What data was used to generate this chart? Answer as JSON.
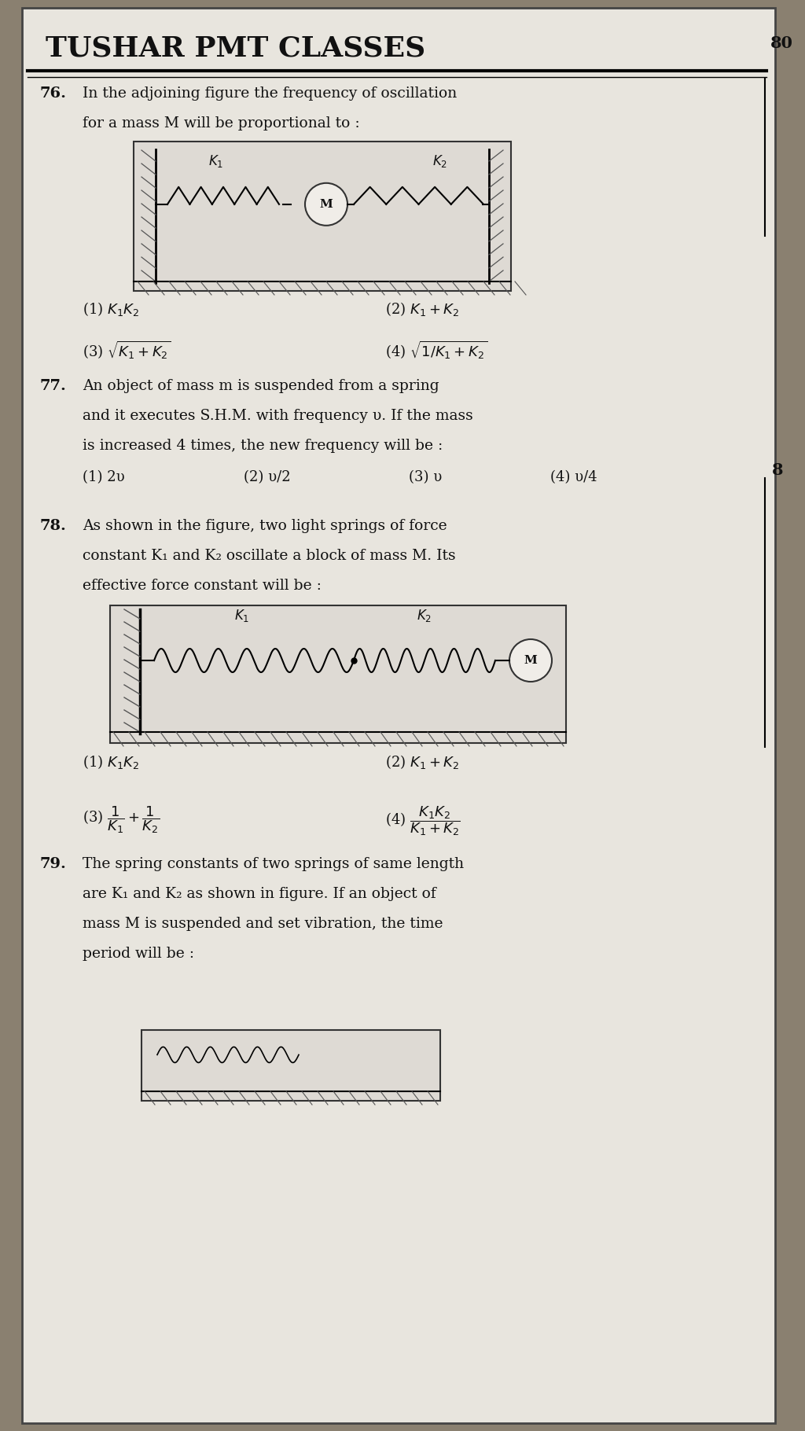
{
  "title": "TUSHAR PMT CLASSES",
  "outer_bg": "#8a8070",
  "paper_bg": "#e8e5de",
  "text_color": "#111111",
  "page_number": "80",
  "border_num_right": "8",
  "q76_num": "76.",
  "q76_l1": "In the adjoining figure the frequency of oscillation",
  "q76_l2": "for a mass M will be proportional to :",
  "q77_num": "77.",
  "q77_l1": "An object of mass m is suspended from a spring",
  "q77_l2": "and it executes S.H.M. with frequency υ. If the mass",
  "q77_l3": "is increased 4 times, the new frequency will be :",
  "q77_o1": "(1) 2υ",
  "q77_o2": "(2) υ/2",
  "q77_o3": "(3) υ",
  "q77_o4": "(4) υ/4",
  "q78_num": "78.",
  "q78_l1": "As shown in the figure, two light springs of force",
  "q78_l2": "constant K₁ and K₂ oscillate a block of mass M. Its",
  "q78_l3": "effective force constant will be :",
  "q79_num": "79.",
  "q79_l1": "The spring constants of two springs of same length",
  "q79_l2": "are K₁ and K₂ as shown in figure. If an object of",
  "q79_l3": "mass M is suspended and set vibration, the time",
  "q79_l4": "period will be :"
}
